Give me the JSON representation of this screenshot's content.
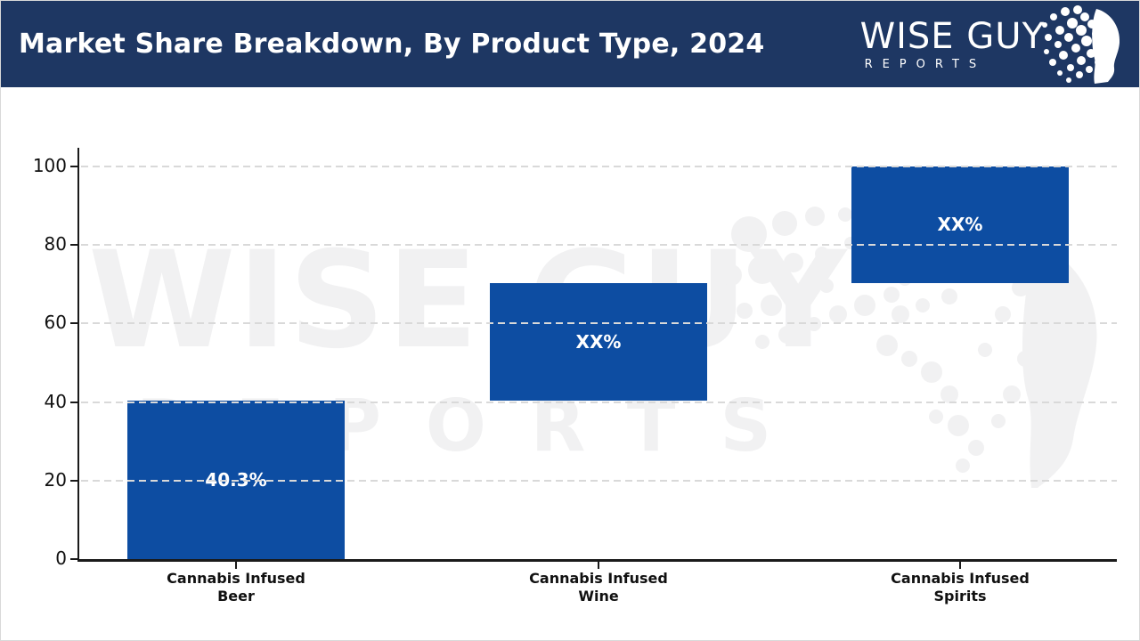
{
  "header": {
    "title": "Market Share Breakdown, By Product Type, 2024",
    "background_color": "#1e3763",
    "logo": {
      "line1": "WISE GUY",
      "line2": "REPORTS"
    }
  },
  "watermark": {
    "line1": "WISE GUY",
    "line2": "REPORTS"
  },
  "chart_data": {
    "type": "bar",
    "variant": "floating-segment-breakdown",
    "title": "Market Share Breakdown, By Product Type, 2024",
    "categories": [
      "Cannabis Infused Beer",
      "Cannabis Infused Wine",
      "Cannabis Infused Spirits"
    ],
    "category_label_lines": [
      [
        "Cannabis Infused",
        "Beer"
      ],
      [
        "Cannabis Infused",
        "Wine"
      ],
      [
        "Cannabis Infused",
        "Spirits"
      ]
    ],
    "bars": [
      {
        "category": "Cannabis Infused Beer",
        "start": 0,
        "end": 40.3,
        "label": "40.3%"
      },
      {
        "category": "Cannabis Infused Wine",
        "start": 40.3,
        "end": 70.3,
        "label": "XX%"
      },
      {
        "category": "Cannabis Infused Spirits",
        "start": 70.3,
        "end": 100,
        "label": "XX%"
      }
    ],
    "xlabel": "",
    "ylabel": "",
    "ylim": [
      0,
      100
    ],
    "yticks": [
      0,
      20,
      40,
      60,
      80,
      100
    ],
    "grid": "horizontal dashed, drawn above bars",
    "legend": "none",
    "bar_color": "#0d4da2",
    "bar_label_color": "#ffffff",
    "axis_color": "#1a1a1a",
    "gridline_color": "#d9d9d9"
  }
}
